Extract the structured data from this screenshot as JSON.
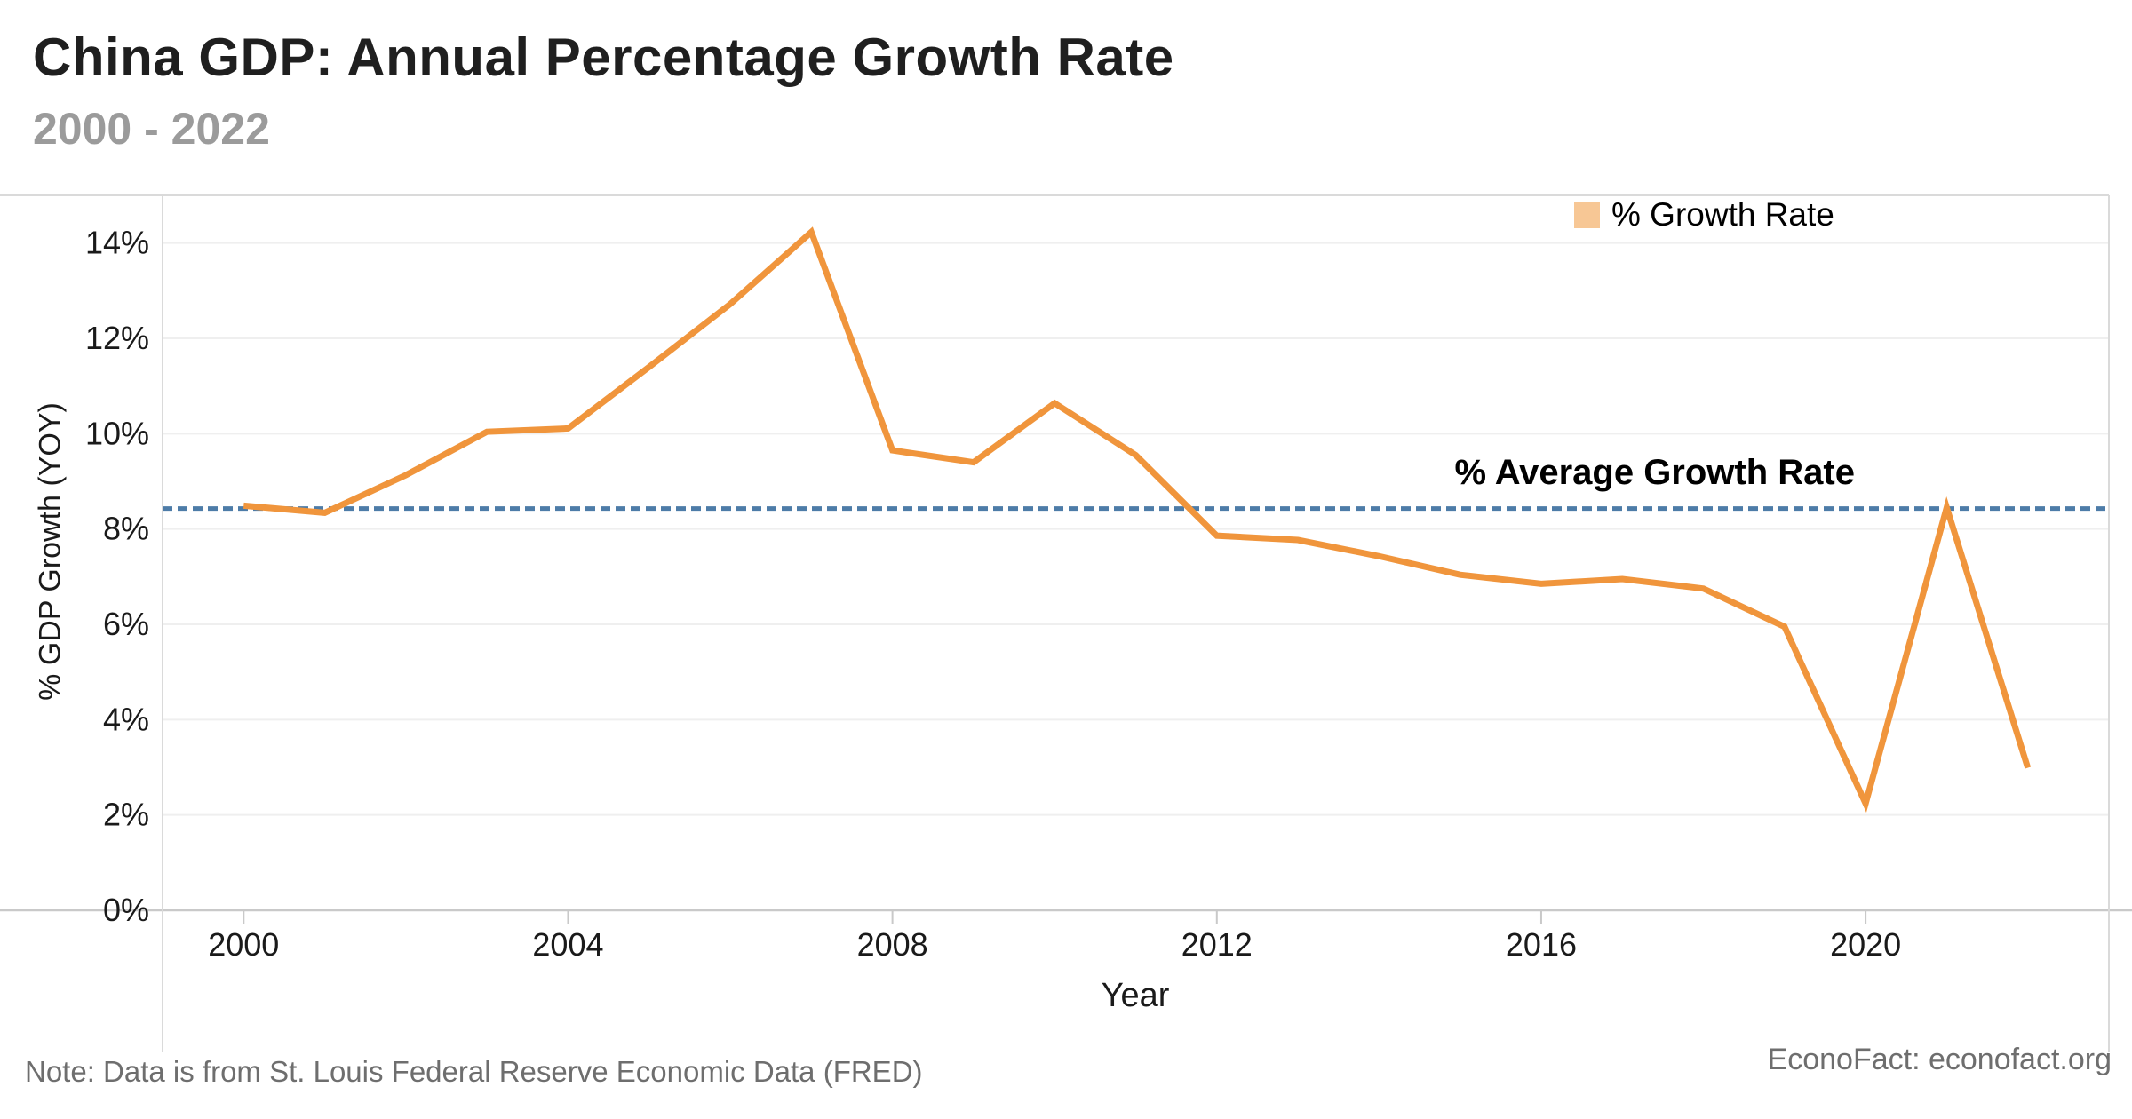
{
  "title": "China GDP: Annual Percentage Growth Rate",
  "subtitle": "2000 - 2022",
  "legend": {
    "growth_rate_label": "% Growth Rate"
  },
  "annotations": {
    "average_label": "% Average Growth Rate"
  },
  "footer": {
    "note": "Note: Data is from St. Louis Federal Reserve Economic Data (FRED)",
    "credit": "EconoFact: econofact.org"
  },
  "chart_data": {
    "type": "line",
    "title": "China GDP: Annual Percentage Growth Rate",
    "subtitle": "2000 - 2022",
    "xlabel": "Year",
    "ylabel": "% GDP Growth (YOY)",
    "x": [
      2000,
      2001,
      2002,
      2003,
      2004,
      2005,
      2006,
      2007,
      2008,
      2009,
      2010,
      2011,
      2012,
      2013,
      2014,
      2015,
      2016,
      2017,
      2018,
      2019,
      2020,
      2021,
      2022
    ],
    "series": [
      {
        "name": "% Growth Rate",
        "values": [
          8.49,
          8.34,
          9.13,
          10.04,
          10.11,
          11.4,
          12.72,
          14.23,
          9.65,
          9.4,
          10.64,
          9.55,
          7.86,
          7.77,
          7.43,
          7.04,
          6.85,
          6.95,
          6.75,
          5.95,
          2.24,
          8.45,
          2.99
        ]
      }
    ],
    "average_growth_rate": 8.43,
    "ylim": [
      0,
      15
    ],
    "yticks": [
      0,
      2,
      4,
      6,
      8,
      10,
      12,
      14
    ],
    "ytick_suffix": "%",
    "xticks": [
      2000,
      2004,
      2008,
      2012,
      2016,
      2020
    ],
    "grid": true,
    "legend_position": "top-right"
  },
  "colors": {
    "line_orange": "#F0953C",
    "legend_swatch_orange": "#F7C795",
    "average_line_blue": "#4D7CA8",
    "gridline": "#EFEFEF",
    "axis_line": "#C9C9C9",
    "plot_border": "#DADADA",
    "title_text": "#1F1F1F",
    "subtitle_text": "#9B9B9B",
    "tick_text": "#1A1A1A",
    "footnote_text": "#6E6E6E"
  }
}
